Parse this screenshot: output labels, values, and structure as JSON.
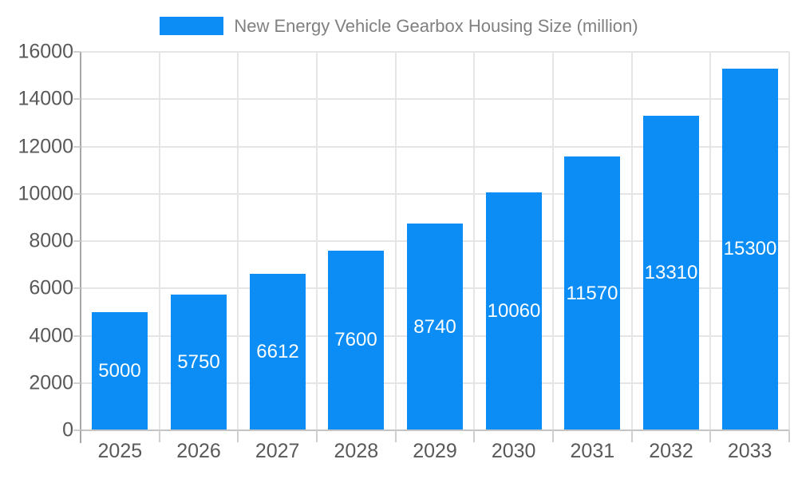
{
  "chart_data": {
    "type": "bar",
    "title": "New Energy Vehicle Gearbox Housing Size (million)",
    "categories": [
      "2025",
      "2026",
      "2027",
      "2028",
      "2029",
      "2030",
      "2031",
      "2032",
      "2033"
    ],
    "values": [
      5000,
      5750,
      6612,
      7600,
      8740,
      10060,
      11570,
      13310,
      15300
    ],
    "xlabel": "",
    "ylabel": "",
    "ylim": [
      0,
      16000
    ],
    "ytick_step": 2000,
    "grid": true,
    "legend_position": "top-center",
    "bar_color": "#0B8DF5",
    "value_label_color": "#FFFFFF"
  },
  "colors": {
    "background": "#FFFFFF",
    "legend_text": "#808080",
    "axis_text": "#595959",
    "grid_line": "#E5E5E5",
    "y_axis_line": "#A8A8A8",
    "x_axis_line": "#C4C4C4",
    "tick_mark": "#CFCFCF"
  }
}
